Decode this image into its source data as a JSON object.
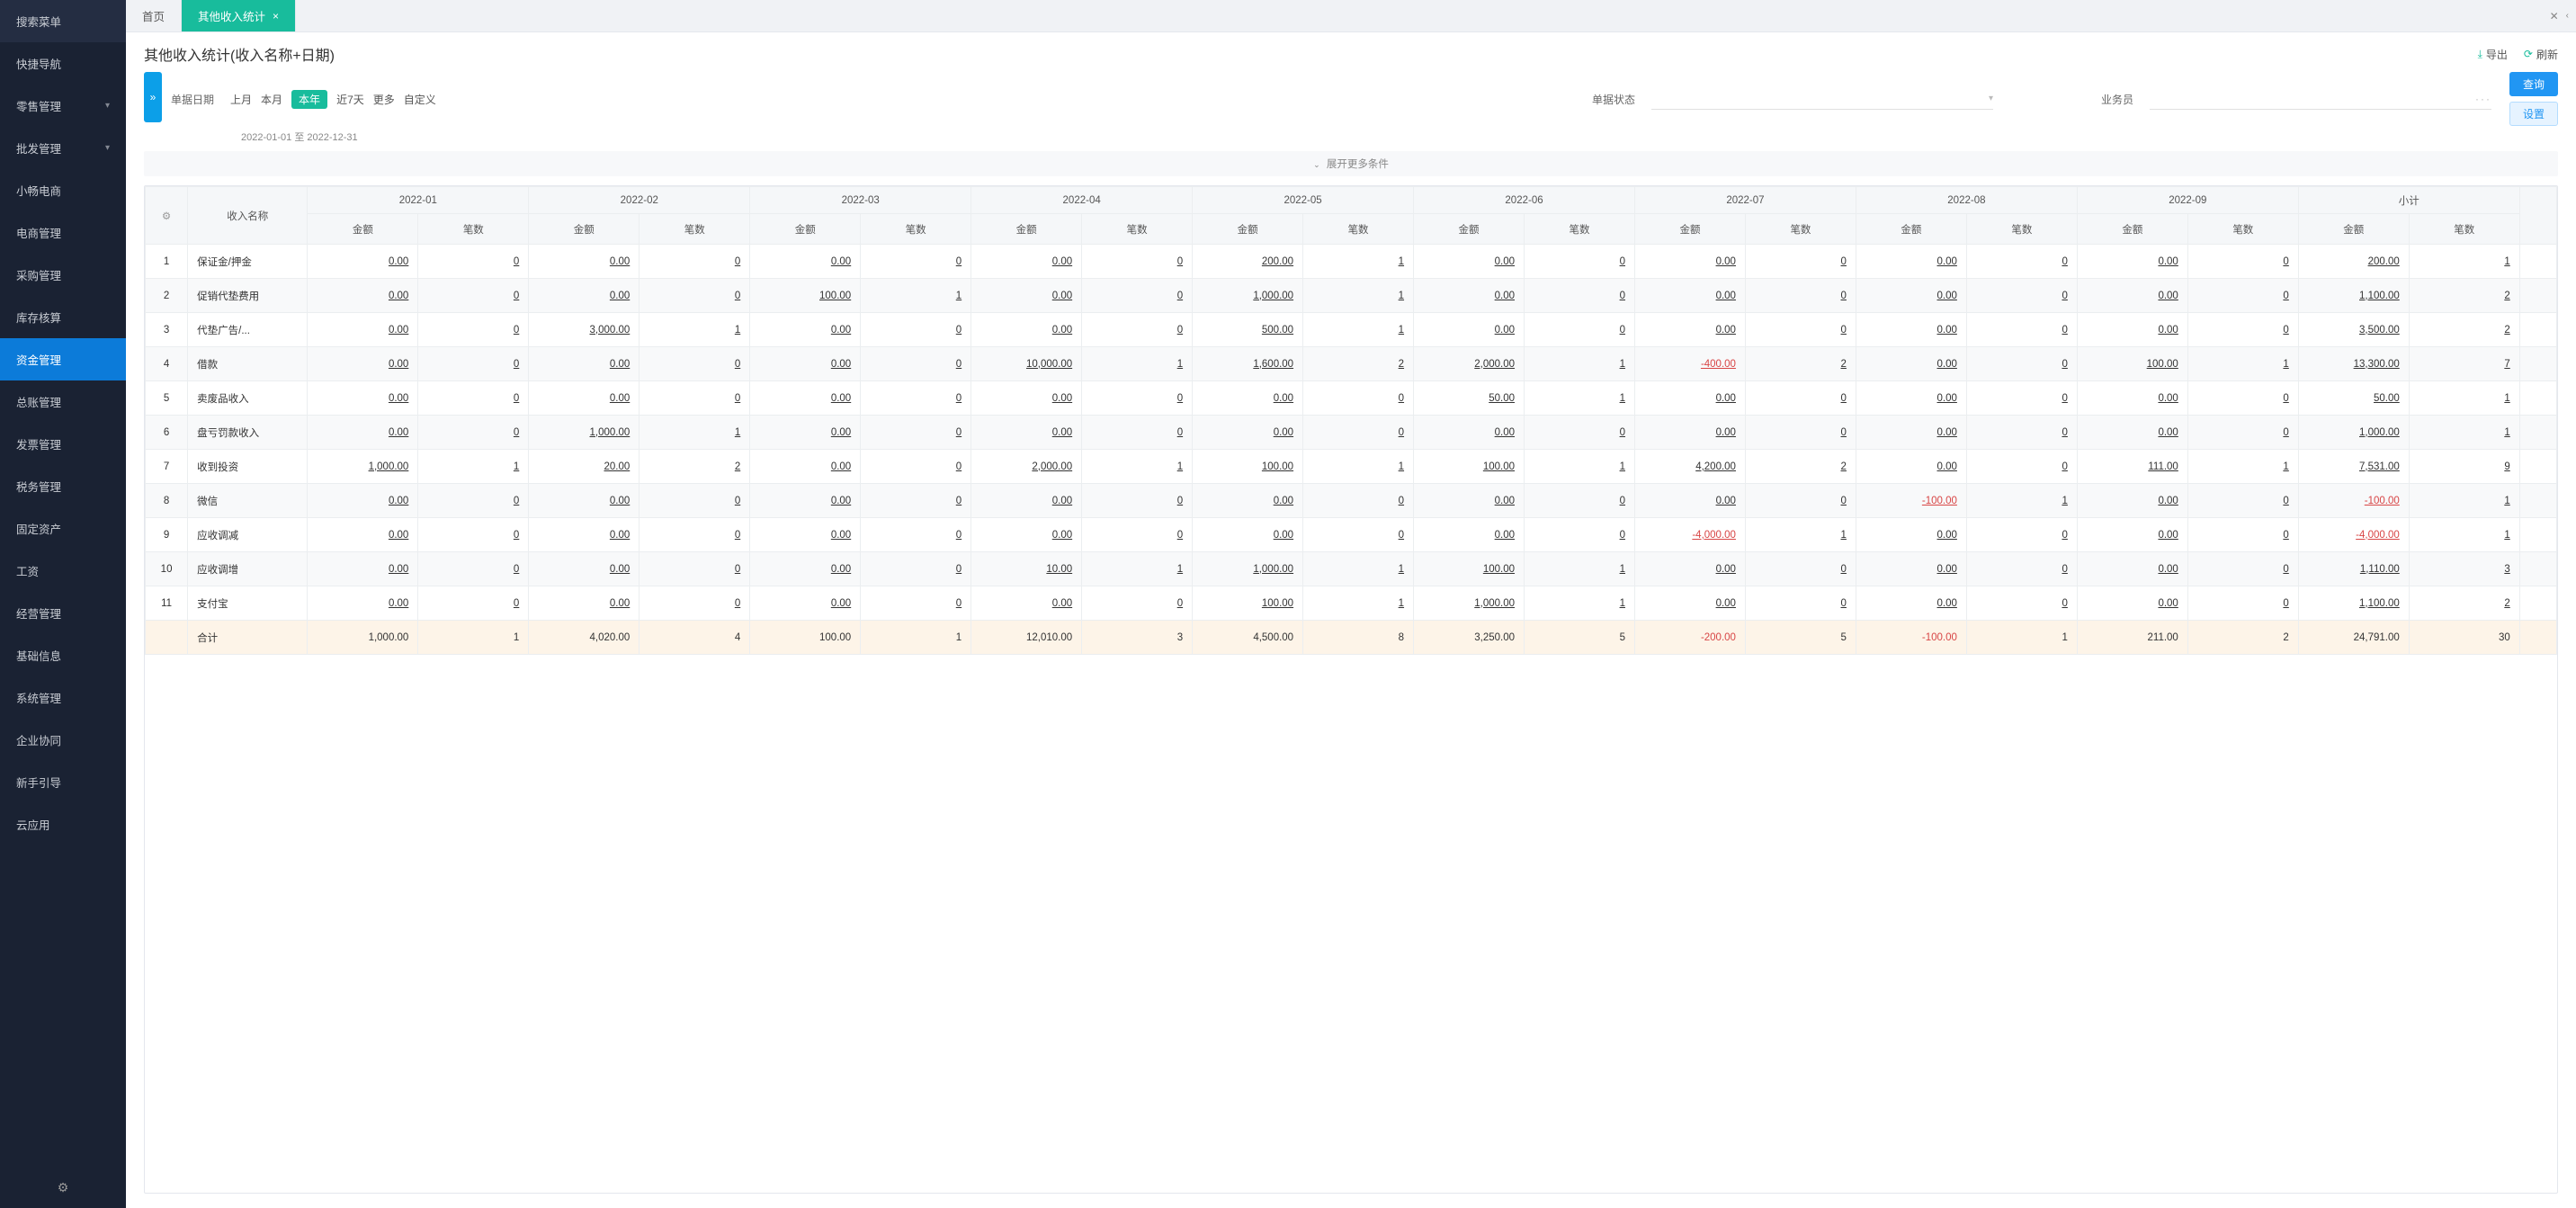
{
  "sidebar": {
    "items": [
      {
        "label": "搜索菜单",
        "active": false,
        "expandable": false
      },
      {
        "label": "快捷导航",
        "active": false,
        "expandable": false
      },
      {
        "label": "零售管理",
        "active": false,
        "expandable": true
      },
      {
        "label": "批发管理",
        "active": false,
        "expandable": true
      },
      {
        "label": "小畅电商",
        "active": false,
        "expandable": false
      },
      {
        "label": "电商管理",
        "active": false,
        "expandable": false
      },
      {
        "label": "采购管理",
        "active": false,
        "expandable": false
      },
      {
        "label": "库存核算",
        "active": false,
        "expandable": false
      },
      {
        "label": "资金管理",
        "active": true,
        "expandable": false
      },
      {
        "label": "总账管理",
        "active": false,
        "expandable": false
      },
      {
        "label": "发票管理",
        "active": false,
        "expandable": false
      },
      {
        "label": "税务管理",
        "active": false,
        "expandable": false
      },
      {
        "label": "固定资产",
        "active": false,
        "expandable": false
      },
      {
        "label": "工资",
        "active": false,
        "expandable": false
      },
      {
        "label": "经营管理",
        "active": false,
        "expandable": false
      },
      {
        "label": "基础信息",
        "active": false,
        "expandable": false
      },
      {
        "label": "系统管理",
        "active": false,
        "expandable": false
      },
      {
        "label": "企业协同",
        "active": false,
        "expandable": false
      },
      {
        "label": "新手引导",
        "active": false,
        "expandable": false
      },
      {
        "label": "云应用",
        "active": false,
        "expandable": false
      }
    ],
    "footerIcon": "⚙"
  },
  "tabs": [
    {
      "label": "首页",
      "active": false,
      "closable": false
    },
    {
      "label": "其他收入统计",
      "active": true,
      "closable": true
    }
  ],
  "page": {
    "title": "其他收入统计(收入名称+日期)",
    "actions": {
      "export": "导出",
      "refresh": "刷新"
    }
  },
  "filters": {
    "dateLabel": "单据日期",
    "quick": [
      {
        "label": "上月",
        "active": false
      },
      {
        "label": "本月",
        "active": false
      },
      {
        "label": "本年",
        "active": true
      },
      {
        "label": "近7天",
        "active": false
      },
      {
        "label": "更多",
        "active": false
      },
      {
        "label": "自定义",
        "active": false
      }
    ],
    "dateRange": "2022-01-01 至 2022-12-31",
    "statusLabel": "单据状态",
    "personLabel": "业务员",
    "expandMore": "展开更多条件",
    "queryBtn": "查询",
    "settingsBtn": "设置"
  },
  "table": {
    "gearTitle": "⚙",
    "nameHeader": "收入名称",
    "amtHeader": "金额",
    "cntHeader": "笔数",
    "subtotalHeader": "小计",
    "periods": [
      "2022-01",
      "2022-02",
      "2022-03",
      "2022-04",
      "2022-05",
      "2022-06",
      "2022-07",
      "2022-08",
      "2022-09"
    ],
    "rows": [
      {
        "idx": 1,
        "name": "保证金/押金",
        "vals": [
          [
            "0.00",
            "0"
          ],
          [
            "0.00",
            "0"
          ],
          [
            "0.00",
            "0"
          ],
          [
            "0.00",
            "0"
          ],
          [
            "200.00",
            "1"
          ],
          [
            "0.00",
            "0"
          ],
          [
            "0.00",
            "0"
          ],
          [
            "0.00",
            "0"
          ],
          [
            "0.00",
            "0"
          ]
        ],
        "sub": [
          "200.00",
          "1"
        ]
      },
      {
        "idx": 2,
        "name": "促销代垫费用",
        "vals": [
          [
            "0.00",
            "0"
          ],
          [
            "0.00",
            "0"
          ],
          [
            "100.00",
            "1"
          ],
          [
            "0.00",
            "0"
          ],
          [
            "1,000.00",
            "1"
          ],
          [
            "0.00",
            "0"
          ],
          [
            "0.00",
            "0"
          ],
          [
            "0.00",
            "0"
          ],
          [
            "0.00",
            "0"
          ]
        ],
        "sub": [
          "1,100.00",
          "2"
        ]
      },
      {
        "idx": 3,
        "name": "代垫广告/...",
        "vals": [
          [
            "0.00",
            "0"
          ],
          [
            "3,000.00",
            "1"
          ],
          [
            "0.00",
            "0"
          ],
          [
            "0.00",
            "0"
          ],
          [
            "500.00",
            "1"
          ],
          [
            "0.00",
            "0"
          ],
          [
            "0.00",
            "0"
          ],
          [
            "0.00",
            "0"
          ],
          [
            "0.00",
            "0"
          ]
        ],
        "sub": [
          "3,500.00",
          "2"
        ]
      },
      {
        "idx": 4,
        "name": "借款",
        "vals": [
          [
            "0.00",
            "0"
          ],
          [
            "0.00",
            "0"
          ],
          [
            "0.00",
            "0"
          ],
          [
            "10,000.00",
            "1"
          ],
          [
            "1,600.00",
            "2"
          ],
          [
            "2,000.00",
            "1"
          ],
          [
            "-400.00",
            "2"
          ],
          [
            "0.00",
            "0"
          ],
          [
            "100.00",
            "1"
          ]
        ],
        "sub": [
          "13,300.00",
          "7"
        ]
      },
      {
        "idx": 5,
        "name": "卖废品收入",
        "vals": [
          [
            "0.00",
            "0"
          ],
          [
            "0.00",
            "0"
          ],
          [
            "0.00",
            "0"
          ],
          [
            "0.00",
            "0"
          ],
          [
            "0.00",
            "0"
          ],
          [
            "50.00",
            "1"
          ],
          [
            "0.00",
            "0"
          ],
          [
            "0.00",
            "0"
          ],
          [
            "0.00",
            "0"
          ]
        ],
        "sub": [
          "50.00",
          "1"
        ]
      },
      {
        "idx": 6,
        "name": "盘亏罚款收入",
        "vals": [
          [
            "0.00",
            "0"
          ],
          [
            "1,000.00",
            "1"
          ],
          [
            "0.00",
            "0"
          ],
          [
            "0.00",
            "0"
          ],
          [
            "0.00",
            "0"
          ],
          [
            "0.00",
            "0"
          ],
          [
            "0.00",
            "0"
          ],
          [
            "0.00",
            "0"
          ],
          [
            "0.00",
            "0"
          ]
        ],
        "sub": [
          "1,000.00",
          "1"
        ]
      },
      {
        "idx": 7,
        "name": "收到投资",
        "vals": [
          [
            "1,000.00",
            "1"
          ],
          [
            "20.00",
            "2"
          ],
          [
            "0.00",
            "0"
          ],
          [
            "2,000.00",
            "1"
          ],
          [
            "100.00",
            "1"
          ],
          [
            "100.00",
            "1"
          ],
          [
            "4,200.00",
            "2"
          ],
          [
            "0.00",
            "0"
          ],
          [
            "111.00",
            "1"
          ]
        ],
        "sub": [
          "7,531.00",
          "9"
        ]
      },
      {
        "idx": 8,
        "name": "微信",
        "vals": [
          [
            "0.00",
            "0"
          ],
          [
            "0.00",
            "0"
          ],
          [
            "0.00",
            "0"
          ],
          [
            "0.00",
            "0"
          ],
          [
            "0.00",
            "0"
          ],
          [
            "0.00",
            "0"
          ],
          [
            "0.00",
            "0"
          ],
          [
            "-100.00",
            "1"
          ],
          [
            "0.00",
            "0"
          ]
        ],
        "sub": [
          "-100.00",
          "1"
        ]
      },
      {
        "idx": 9,
        "name": "应收调减",
        "vals": [
          [
            "0.00",
            "0"
          ],
          [
            "0.00",
            "0"
          ],
          [
            "0.00",
            "0"
          ],
          [
            "0.00",
            "0"
          ],
          [
            "0.00",
            "0"
          ],
          [
            "0.00",
            "0"
          ],
          [
            "-4,000.00",
            "1"
          ],
          [
            "0.00",
            "0"
          ],
          [
            "0.00",
            "0"
          ]
        ],
        "sub": [
          "-4,000.00",
          "1"
        ]
      },
      {
        "idx": 10,
        "name": "应收调增",
        "vals": [
          [
            "0.00",
            "0"
          ],
          [
            "0.00",
            "0"
          ],
          [
            "0.00",
            "0"
          ],
          [
            "10.00",
            "1"
          ],
          [
            "1,000.00",
            "1"
          ],
          [
            "100.00",
            "1"
          ],
          [
            "0.00",
            "0"
          ],
          [
            "0.00",
            "0"
          ],
          [
            "0.00",
            "0"
          ]
        ],
        "sub": [
          "1,110.00",
          "3"
        ]
      },
      {
        "idx": 11,
        "name": "支付宝",
        "vals": [
          [
            "0.00",
            "0"
          ],
          [
            "0.00",
            "0"
          ],
          [
            "0.00",
            "0"
          ],
          [
            "0.00",
            "0"
          ],
          [
            "100.00",
            "1"
          ],
          [
            "1,000.00",
            "1"
          ],
          [
            "0.00",
            "0"
          ],
          [
            "0.00",
            "0"
          ],
          [
            "0.00",
            "0"
          ]
        ],
        "sub": [
          "1,100.00",
          "2"
        ]
      }
    ],
    "footerLabel": "合计",
    "footerVals": [
      [
        "1,000.00",
        "1"
      ],
      [
        "4,020.00",
        "4"
      ],
      [
        "100.00",
        "1"
      ],
      [
        "12,010.00",
        "3"
      ],
      [
        "4,500.00",
        "8"
      ],
      [
        "3,250.00",
        "5"
      ],
      [
        "-200.00",
        "5"
      ],
      [
        "-100.00",
        "1"
      ],
      [
        "211.00",
        "2"
      ]
    ],
    "footerSub": [
      "24,791.00",
      "30"
    ]
  },
  "colors": {
    "sidebarBg": "#1a2233",
    "activeTab": "#18bc9c",
    "activeSidebar": "#0c7bd9",
    "primaryBtn": "#2196f3",
    "negText": "#d84545",
    "footerBg": "#fdf4e8"
  }
}
